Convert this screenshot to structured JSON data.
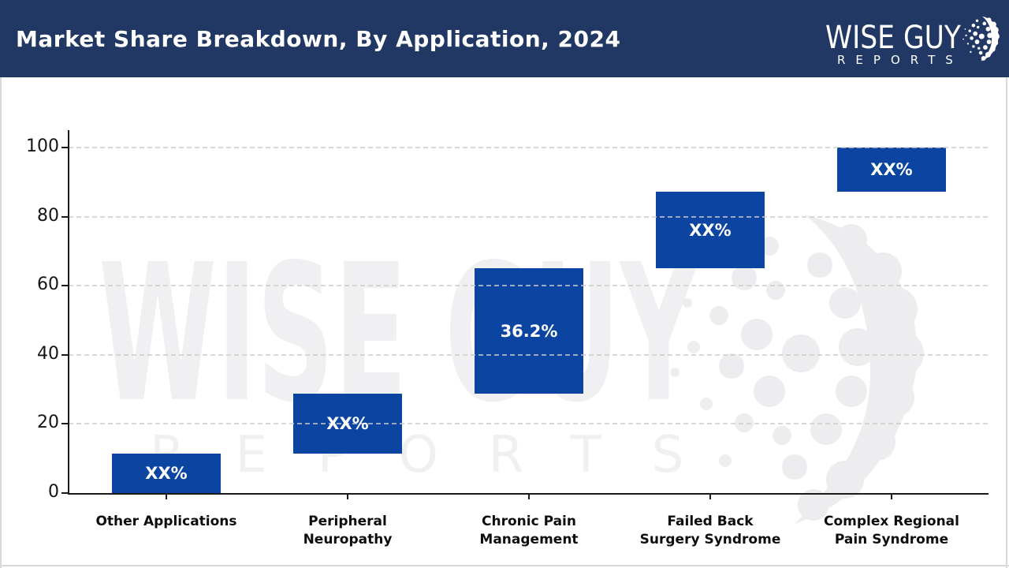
{
  "header": {
    "title": "Market Share Breakdown, By Application, 2024",
    "logo": {
      "wordmark": "WISE GUY",
      "subtext": "REPORTS"
    }
  },
  "watermark": {
    "wordmark": "WISE GUY",
    "subtext": "REPORTS"
  },
  "colors": {
    "header_bg": "#213864",
    "bar": "#0b45a1",
    "bar_label": "#ffffff",
    "gridline": "#cbcbcb",
    "watermark": "#f0f0f3"
  },
  "chart_data": {
    "type": "bar",
    "variant": "waterfall",
    "title": "Market Share Breakdown, By Application, 2024",
    "categories": [
      "Other Applications",
      "Peripheral Neuropathy",
      "Chronic Pain Management",
      "Failed Back Surgery Syndrome",
      "Complex Regional Pain Syndrome"
    ],
    "category_label_lines": [
      [
        "Other Applications"
      ],
      [
        "Peripheral",
        "Neuropathy"
      ],
      [
        "Chronic Pain",
        "Management"
      ],
      [
        "Failed Back",
        "Surgery Syndrome"
      ],
      [
        "Complex Regional",
        "Pain Syndrome"
      ]
    ],
    "segments": [
      {
        "start": 0,
        "end": 11.4,
        "value": 11.4,
        "label": "XX%"
      },
      {
        "start": 11.4,
        "end": 28.8,
        "value": 17.4,
        "label": "XX%"
      },
      {
        "start": 28.8,
        "end": 65.0,
        "value": 36.2,
        "label": "36.2%"
      },
      {
        "start": 65.0,
        "end": 87.2,
        "value": 22.2,
        "label": "XX%"
      },
      {
        "start": 87.2,
        "end": 100,
        "value": 12.8,
        "label": "XX%"
      }
    ],
    "yticks": [
      0,
      20,
      40,
      60,
      80,
      100
    ],
    "ylim": [
      0,
      105
    ],
    "xlabel": "",
    "ylabel": "",
    "grid": {
      "axis": "y",
      "style": "dashed",
      "above_bars": true
    },
    "legend": "none",
    "bar_color": "#0b45a1",
    "bar_label_color": "#ffffff"
  }
}
